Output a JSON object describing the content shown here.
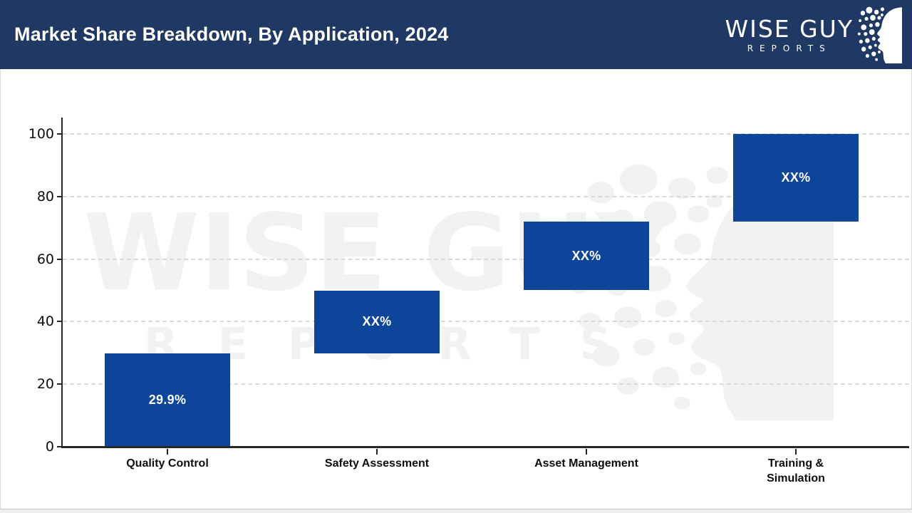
{
  "header": {
    "title": "Market Share Breakdown, By Application, 2024",
    "logo": {
      "name": "WISE GUY",
      "subtitle": "REPORTS"
    }
  },
  "watermark": {
    "line1": "WISE GUY",
    "line2": "REPORTS"
  },
  "chart_data": {
    "type": "bar",
    "variant": "waterfall",
    "title": "Market Share Breakdown, By Application, 2024",
    "xlabel": "",
    "ylabel": "",
    "ylim": [
      0,
      100
    ],
    "y_ticks": [
      0,
      20,
      40,
      60,
      80,
      100
    ],
    "grid": "horizontal-dashed",
    "legend": "none",
    "bar_color": "#0c4599",
    "bar_label_color": "#ffffff",
    "categories": [
      "Quality Control",
      "Safety Assessment",
      "Asset Management",
      "Training & Simulation"
    ],
    "category_label_lines": [
      [
        "Quality Control"
      ],
      [
        "Safety Assessment"
      ],
      [
        "Asset Management"
      ],
      [
        "Training &",
        "Simulation"
      ]
    ],
    "segments": [
      {
        "category": "Quality Control",
        "start": 0,
        "end": 29.9,
        "value": 29.9,
        "label": "29.9%"
      },
      {
        "category": "Safety Assessment",
        "start": 29.9,
        "end": 50,
        "value": 20.1,
        "label": "XX%"
      },
      {
        "category": "Asset Management",
        "start": 50,
        "end": 72,
        "value": 22,
        "label": "XX%"
      },
      {
        "category": "Training & Simulation",
        "start": 72,
        "end": 100,
        "value": 28,
        "label": "XX%"
      }
    ]
  },
  "colors": {
    "header_bg": "#1f3864",
    "bar": "#0c4599",
    "axis": "#262626",
    "gridline": "#d9d9d9",
    "tick_label": "#0d0d0d",
    "watermark": "#f2f2f4",
    "page_bg": "#ffffff"
  }
}
